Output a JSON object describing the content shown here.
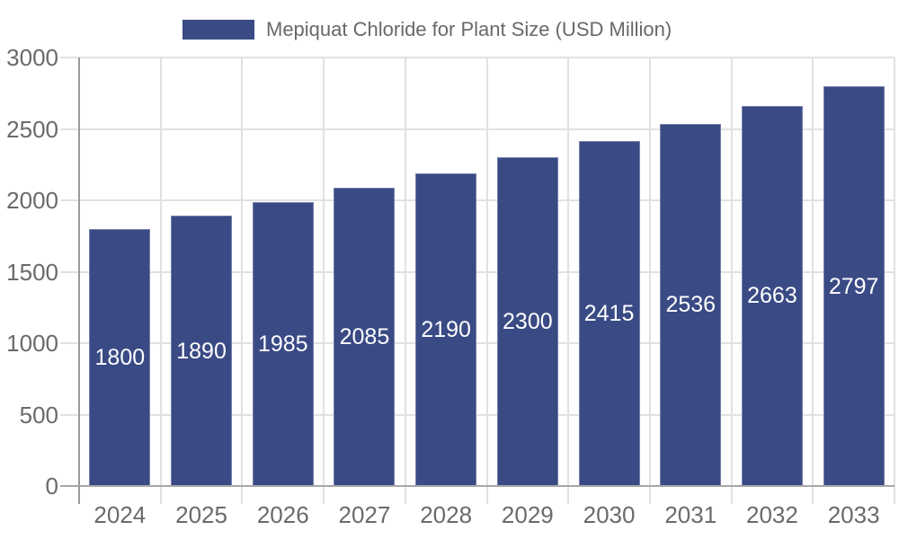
{
  "chart_data": {
    "type": "bar",
    "title": "Mepiquat Chloride for Plant Size (USD Million)",
    "categories": [
      "2024",
      "2025",
      "2026",
      "2027",
      "2028",
      "2029",
      "2030",
      "2031",
      "2032",
      "2033"
    ],
    "values": [
      1800,
      1890,
      1985,
      2085,
      2190,
      2300,
      2415,
      2536,
      2663,
      2797
    ],
    "xlabel": "",
    "ylabel": "",
    "ylim": [
      0,
      3000
    ],
    "yticks": [
      0,
      500,
      1000,
      1500,
      2000,
      2500,
      3000
    ],
    "grid": true,
    "legend_position": "top-center",
    "bar_color": "#3A4A85",
    "bar_value_label_color": "#ffffff",
    "axis_text_color": "#6a6a6a",
    "title_color": "#66696b",
    "grid_color": "#e1e1e4",
    "axis_line_color": "#a6a6a6",
    "background_color": "#ffffff"
  }
}
